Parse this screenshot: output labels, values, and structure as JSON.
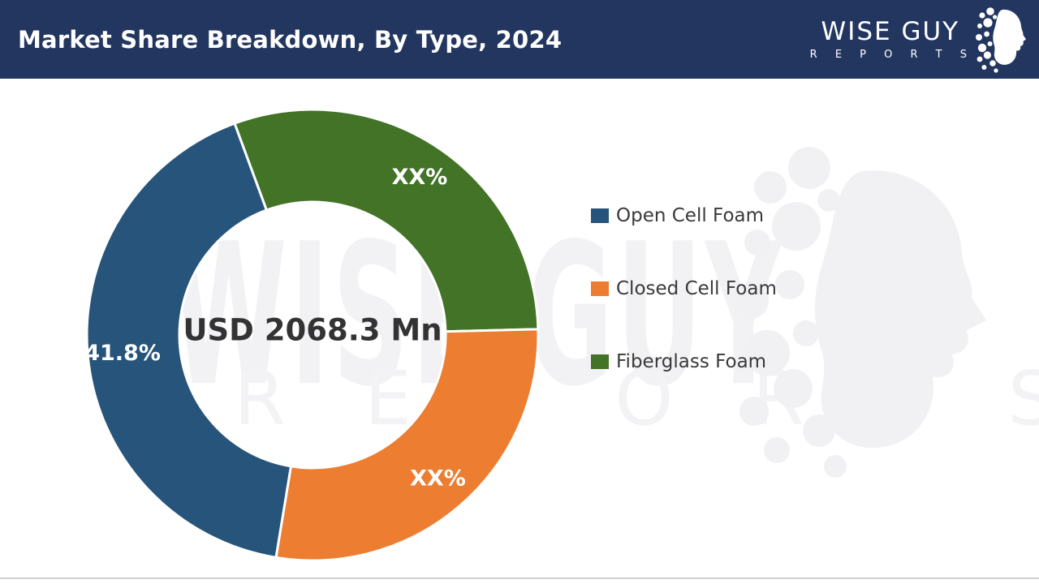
{
  "header": {
    "title": "Market Share Breakdown, By Type, 2024",
    "logo": {
      "line1": "WISE GUY",
      "line2": "R E P O R T S"
    }
  },
  "watermark": {
    "line1": "WISE GUY",
    "line2": "R E P O R T S"
  },
  "chart_data": {
    "type": "pie",
    "subtype": "donut",
    "title": "Market Share Breakdown, By Type, 2024",
    "center_label": "USD 2068.3 Mn",
    "start_angle_deg": -20.2,
    "direction": "clockwise",
    "segments": [
      {
        "name": "Fiberglass Foam",
        "label": "XX%",
        "value_pct": 30.2,
        "color": "#427327"
      },
      {
        "name": "Closed Cell Foam",
        "label": "XX%",
        "value_pct": 28.0,
        "color": "#ec7d31"
      },
      {
        "name": "Open Cell Foam",
        "label": "41.8%",
        "value_pct": 41.8,
        "color": "#26547a"
      }
    ],
    "legend_position": "right",
    "grid": false
  },
  "legend": {
    "items": [
      {
        "label": "Open Cell Foam",
        "color": "#26547a"
      },
      {
        "label": "Closed Cell Foam",
        "color": "#ec7d31"
      },
      {
        "label": "Fiberglass Foam",
        "color": "#427327"
      }
    ]
  },
  "colors": {
    "header_bg": "#23365f",
    "center_text": "#333333",
    "watermark": "#f2f2f5",
    "bottom_rule": "#cfcfcf"
  }
}
